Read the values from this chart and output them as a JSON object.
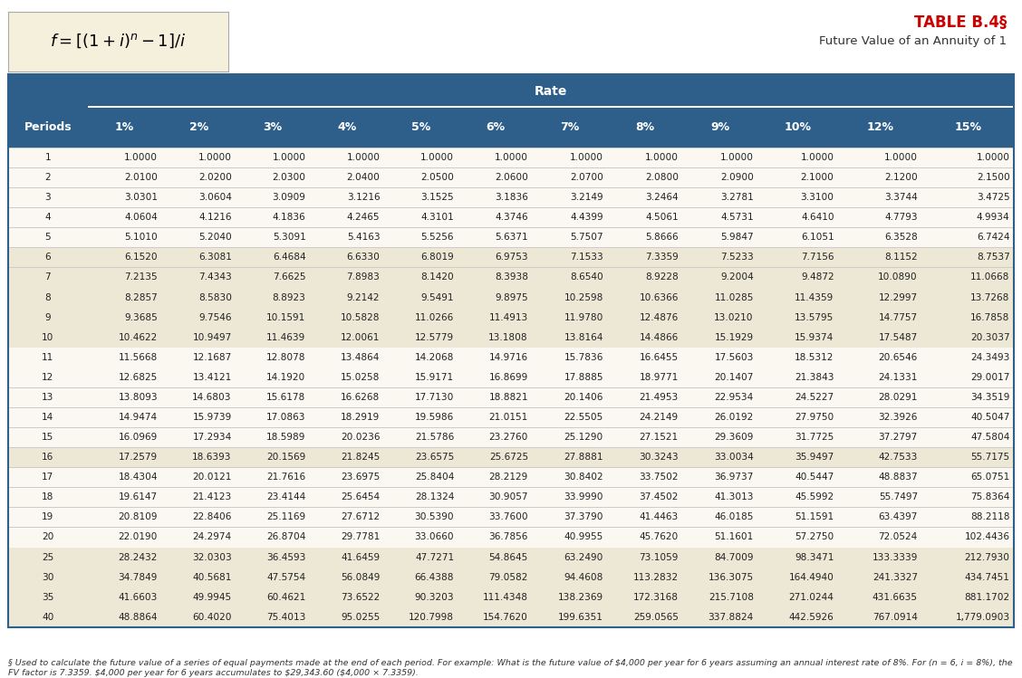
{
  "title": "TABLE B.4§",
  "subtitle": "Future Value of an Annuity of 1",
  "footnote": "§ Used to calculate the future value of a series of equal payments made at the end of each period. For example: What is the future value of $4,000 per year for 6 years assuming an annual interest rate of 8%. For (n = 6, i = 8%), the FV factor is 7.3359. $4,000 per year for 6 years accumulates to $29,343.60 ($4,000 × 7.3359).",
  "col_headers": [
    "Periods",
    "1%",
    "2%",
    "3%",
    "4%",
    "5%",
    "6%",
    "7%",
    "8%",
    "9%",
    "10%",
    "12%",
    "15%"
  ],
  "rows": [
    [
      1,
      "1.0000",
      "1.0000",
      "1.0000",
      "1.0000",
      "1.0000",
      "1.0000",
      "1.0000",
      "1.0000",
      "1.0000",
      "1.0000",
      "1.0000",
      "1.0000"
    ],
    [
      2,
      "2.0100",
      "2.0200",
      "2.0300",
      "2.0400",
      "2.0500",
      "2.0600",
      "2.0700",
      "2.0800",
      "2.0900",
      "2.1000",
      "2.1200",
      "2.1500"
    ],
    [
      3,
      "3.0301",
      "3.0604",
      "3.0909",
      "3.1216",
      "3.1525",
      "3.1836",
      "3.2149",
      "3.2464",
      "3.2781",
      "3.3100",
      "3.3744",
      "3.4725"
    ],
    [
      4,
      "4.0604",
      "4.1216",
      "4.1836",
      "4.2465",
      "4.3101",
      "4.3746",
      "4.4399",
      "4.5061",
      "4.5731",
      "4.6410",
      "4.7793",
      "4.9934"
    ],
    [
      5,
      "5.1010",
      "5.2040",
      "5.3091",
      "5.4163",
      "5.5256",
      "5.6371",
      "5.7507",
      "5.8666",
      "5.9847",
      "6.1051",
      "6.3528",
      "6.7424"
    ],
    [
      6,
      "6.1520",
      "6.3081",
      "6.4684",
      "6.6330",
      "6.8019",
      "6.9753",
      "7.1533",
      "7.3359",
      "7.5233",
      "7.7156",
      "8.1152",
      "8.7537"
    ],
    [
      7,
      "7.2135",
      "7.4343",
      "7.6625",
      "7.8983",
      "8.1420",
      "8.3938",
      "8.6540",
      "8.9228",
      "9.2004",
      "9.4872",
      "10.0890",
      "11.0668"
    ],
    [
      8,
      "8.2857",
      "8.5830",
      "8.8923",
      "9.2142",
      "9.5491",
      "9.8975",
      "10.2598",
      "10.6366",
      "11.0285",
      "11.4359",
      "12.2997",
      "13.7268"
    ],
    [
      9,
      "9.3685",
      "9.7546",
      "10.1591",
      "10.5828",
      "11.0266",
      "11.4913",
      "11.9780",
      "12.4876",
      "13.0210",
      "13.5795",
      "14.7757",
      "16.7858"
    ],
    [
      10,
      "10.4622",
      "10.9497",
      "11.4639",
      "12.0061",
      "12.5779",
      "13.1808",
      "13.8164",
      "14.4866",
      "15.1929",
      "15.9374",
      "17.5487",
      "20.3037"
    ],
    [
      11,
      "11.5668",
      "12.1687",
      "12.8078",
      "13.4864",
      "14.2068",
      "14.9716",
      "15.7836",
      "16.6455",
      "17.5603",
      "18.5312",
      "20.6546",
      "24.3493"
    ],
    [
      12,
      "12.6825",
      "13.4121",
      "14.1920",
      "15.0258",
      "15.9171",
      "16.8699",
      "17.8885",
      "18.9771",
      "20.1407",
      "21.3843",
      "24.1331",
      "29.0017"
    ],
    [
      13,
      "13.8093",
      "14.6803",
      "15.6178",
      "16.6268",
      "17.7130",
      "18.8821",
      "20.1406",
      "21.4953",
      "22.9534",
      "24.5227",
      "28.0291",
      "34.3519"
    ],
    [
      14,
      "14.9474",
      "15.9739",
      "17.0863",
      "18.2919",
      "19.5986",
      "21.0151",
      "22.5505",
      "24.2149",
      "26.0192",
      "27.9750",
      "32.3926",
      "40.5047"
    ],
    [
      15,
      "16.0969",
      "17.2934",
      "18.5989",
      "20.0236",
      "21.5786",
      "23.2760",
      "25.1290",
      "27.1521",
      "29.3609",
      "31.7725",
      "37.2797",
      "47.5804"
    ],
    [
      16,
      "17.2579",
      "18.6393",
      "20.1569",
      "21.8245",
      "23.6575",
      "25.6725",
      "27.8881",
      "30.3243",
      "33.0034",
      "35.9497",
      "42.7533",
      "55.7175"
    ],
    [
      17,
      "18.4304",
      "20.0121",
      "21.7616",
      "23.6975",
      "25.8404",
      "28.2129",
      "30.8402",
      "33.7502",
      "36.9737",
      "40.5447",
      "48.8837",
      "65.0751"
    ],
    [
      18,
      "19.6147",
      "21.4123",
      "23.4144",
      "25.6454",
      "28.1324",
      "30.9057",
      "33.9990",
      "37.4502",
      "41.3013",
      "45.5992",
      "55.7497",
      "75.8364"
    ],
    [
      19,
      "20.8109",
      "22.8406",
      "25.1169",
      "27.6712",
      "30.5390",
      "33.7600",
      "37.3790",
      "41.4463",
      "46.0185",
      "51.1591",
      "63.4397",
      "88.2118"
    ],
    [
      20,
      "22.0190",
      "24.2974",
      "26.8704",
      "29.7781",
      "33.0660",
      "36.7856",
      "40.9955",
      "45.7620",
      "51.1601",
      "57.2750",
      "72.0524",
      "102.4436"
    ],
    [
      25,
      "28.2432",
      "32.0303",
      "36.4593",
      "41.6459",
      "47.7271",
      "54.8645",
      "63.2490",
      "73.1059",
      "84.7009",
      "98.3471",
      "133.3339",
      "212.7930"
    ],
    [
      30,
      "34.7849",
      "40.5681",
      "47.5754",
      "56.0849",
      "66.4388",
      "79.0582",
      "94.4608",
      "113.2832",
      "136.3075",
      "164.4940",
      "241.3327",
      "434.7451"
    ],
    [
      35,
      "41.6603",
      "49.9945",
      "60.4621",
      "73.6522",
      "90.3203",
      "111.4348",
      "138.2369",
      "172.3168",
      "215.7108",
      "271.0244",
      "431.6635",
      "881.1702"
    ],
    [
      40,
      "48.8864",
      "60.4020",
      "75.4013",
      "95.0255",
      "120.7998",
      "154.7620",
      "199.6351",
      "259.0565",
      "337.8824",
      "442.5926",
      "767.0914",
      "1,779.0903"
    ]
  ],
  "header_bg": "#2d5f8a",
  "header_fg": "#ffffff",
  "row_bg_light": "#faf8f0",
  "row_bg_shaded": "#ede8d5",
  "shaded_rows": [
    5,
    6,
    7,
    8,
    9,
    15,
    20,
    21,
    22,
    23
  ],
  "border_color": "#2d5f8a",
  "title_color": "#cc0000",
  "formula_bg": "#f5f0dc",
  "footnote_color": "#333333"
}
